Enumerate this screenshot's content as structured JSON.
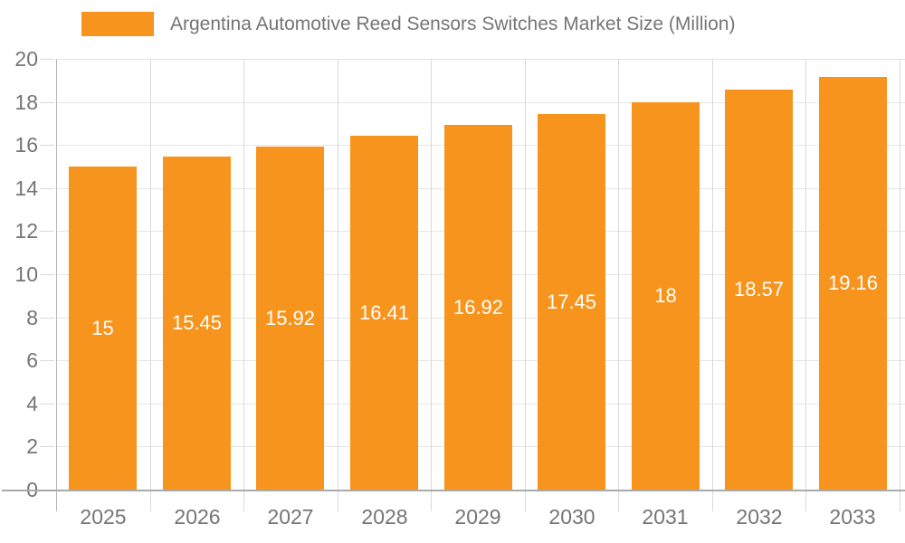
{
  "chart_data": {
    "type": "bar",
    "title": "Argentina Automotive Reed Sensors Switches Market Size (Million)",
    "categories": [
      "2025",
      "2026",
      "2027",
      "2028",
      "2029",
      "2030",
      "2031",
      "2032",
      "2033"
    ],
    "values": [
      15,
      15.45,
      15.92,
      16.41,
      16.92,
      17.45,
      18,
      18.57,
      19.16
    ],
    "value_labels": [
      "15",
      "15.45",
      "15.92",
      "16.41",
      "16.92",
      "17.45",
      "18",
      "18.57",
      "19.16"
    ],
    "xlabel": "",
    "ylabel": "",
    "ylim": [
      0,
      20
    ],
    "ytick_step": 2,
    "grid": true,
    "legend_position": "top",
    "colors": {
      "bar": "#F7941E",
      "value_label": "#FFFFFF",
      "axis_text": "#757575",
      "grid_horizontal": "#E5E5E5",
      "grid_vertical": "#D9D9D9",
      "axis_line": "#B5B5B5",
      "baseline": "#AAAAAA",
      "background": "#FFFFFF"
    }
  }
}
